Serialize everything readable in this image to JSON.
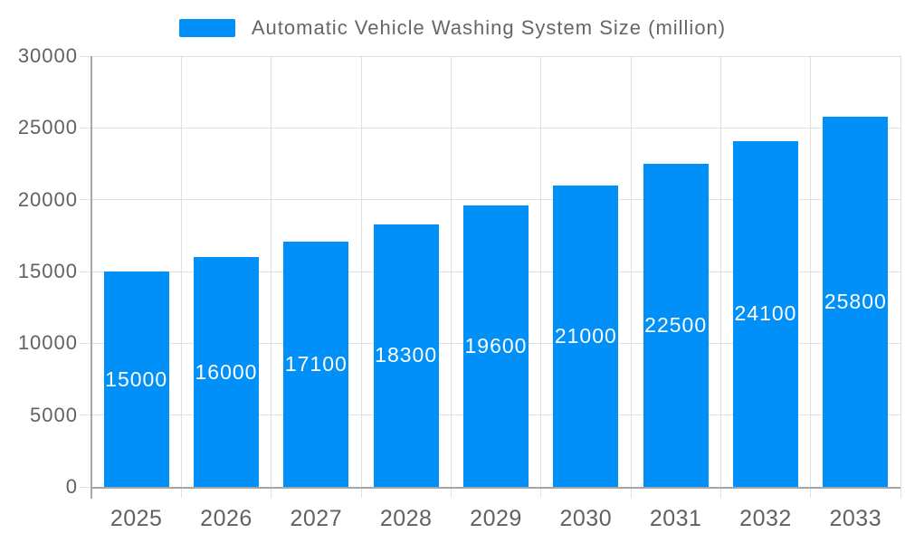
{
  "chart_data": {
    "type": "bar",
    "title": "Automatic Vehicle Washing System Size (million)",
    "legend_position": "top",
    "categories": [
      "2025",
      "2026",
      "2027",
      "2028",
      "2029",
      "2030",
      "2031",
      "2032",
      "2033"
    ],
    "series": [
      {
        "name": "Automatic Vehicle Washing System Size (million)",
        "values": [
          15000,
          16000,
          17100,
          18300,
          19600,
          21000,
          22500,
          24100,
          25800
        ]
      }
    ],
    "xlabel": "",
    "ylabel": "",
    "ylim": [
      0,
      30000
    ],
    "yticks": [
      0,
      5000,
      10000,
      15000,
      20000,
      25000,
      30000
    ],
    "grid": true,
    "data_label_position": "inside-center",
    "colors": {
      "bar": "#0090F8",
      "grid": "#e0e0e0",
      "axis": "#a6a6a6",
      "label": "#616161",
      "data_label": "#ffffff",
      "background": "#ffffff"
    }
  }
}
